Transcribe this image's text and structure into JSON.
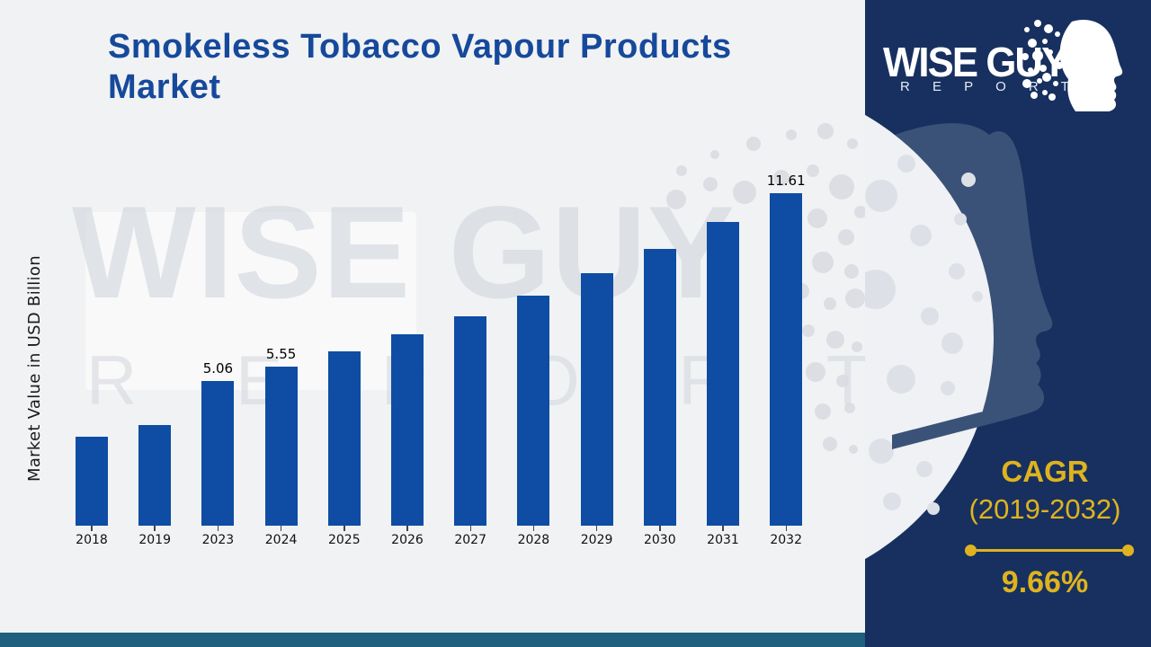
{
  "header": {
    "title": "Smokeless Tobacco Vapour Products Market"
  },
  "watermark": {
    "line1": "WISE GUY",
    "line2": "R E P O R T S"
  },
  "logo": {
    "line1": "WISE GUY",
    "line2": "R E P O R T S"
  },
  "cagr": {
    "label": "CAGR",
    "range": "(2019-2032)",
    "value": "9.66%"
  },
  "colors": {
    "background": "#f1f2f3",
    "bar": "#0e4da3",
    "title_blue": "#16499b",
    "panel_navy": "#17305f",
    "face_navy": "#3b5278",
    "accent_gold": "#dfb31f",
    "bottom_strip_teal": "#20607f",
    "watermark_gray": "#d2d6dc"
  },
  "chart_data": {
    "type": "bar",
    "title": "Smokeless Tobacco Vapour Products Market",
    "xlabel": "",
    "ylabel": "Market Value in USD Billion",
    "categories": [
      "2018",
      "2019",
      "2023",
      "2024",
      "2025",
      "2026",
      "2027",
      "2028",
      "2029",
      "2030",
      "2031",
      "2032"
    ],
    "values": [
      3.1,
      3.5,
      5.06,
      5.55,
      6.09,
      6.68,
      7.32,
      8.03,
      8.81,
      9.66,
      10.59,
      11.61
    ],
    "bar_labels": [
      "",
      "",
      "5.06",
      "5.55",
      "",
      "",
      "",
      "",
      "",
      "",
      "",
      "11.61"
    ],
    "bar_color": "#0e4da3",
    "ylim": [
      0,
      12.3
    ],
    "grid": false,
    "legend": false,
    "annotation": "CAGR (2019-2032) 9.66%"
  }
}
